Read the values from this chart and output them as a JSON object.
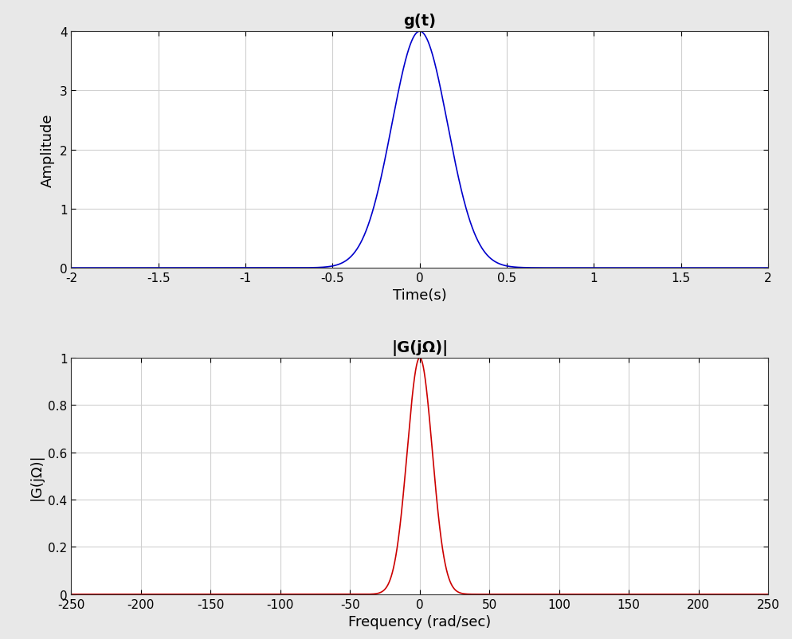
{
  "fig_width": 9.94,
  "fig_height": 8.03,
  "dpi": 100,
  "background_color": "#e8e8e8",
  "axes_facecolor": "#ffffff",
  "subplot1": {
    "title": "g(t)",
    "title_fontsize": 14,
    "title_fontweight": "bold",
    "xlabel": "Time(s)",
    "xlabel_fontsize": 13,
    "ylabel": "Amplitude",
    "ylabel_fontsize": 13,
    "xlim": [
      -2,
      2
    ],
    "ylim": [
      0,
      4
    ],
    "xticks": [
      -2,
      -1.5,
      -1,
      -0.5,
      0,
      0.5,
      1,
      1.5,
      2
    ],
    "yticks": [
      0,
      1,
      2,
      3,
      4
    ],
    "line_color": "#0000cc",
    "line_width": 1.2,
    "amplitude": 4,
    "sigma": 0.16,
    "grid": true,
    "grid_color": "#d0d0d0",
    "grid_linewidth": 0.8
  },
  "subplot2": {
    "title": "|G(jΩ)|",
    "title_fontsize": 14,
    "title_fontweight": "bold",
    "xlabel": "Frequency (rad/sec)",
    "xlabel_fontsize": 13,
    "ylabel": "|G(jΩ)|",
    "ylabel_fontsize": 13,
    "xlim": [
      -250,
      250
    ],
    "ylim": [
      0,
      1
    ],
    "xticks": [
      -250,
      -200,
      -150,
      -100,
      -50,
      0,
      50,
      100,
      150,
      200,
      250
    ],
    "yticks": [
      0,
      0.2,
      0.4,
      0.6,
      0.8,
      1.0
    ],
    "line_color": "#cc0000",
    "line_width": 1.2,
    "sigma_freq": 9,
    "grid": true,
    "grid_color": "#d0d0d0",
    "grid_linewidth": 0.8
  }
}
